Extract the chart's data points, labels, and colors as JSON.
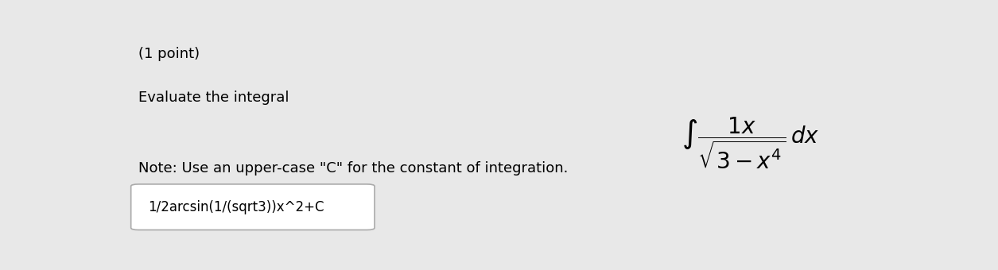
{
  "background_color": "#e8e8e8",
  "title_text": "(1 point)",
  "subtitle_text": "Evaluate the integral",
  "note_text": "Note: Use an upper-case \"C\" for the constant of integration.",
  "answer_text": "1/2arcsin(1/(sqrt3))x^2+C",
  "integral_latex": "$\\int \\dfrac{1x}{\\sqrt{3-x^4}}\\, dx$",
  "text_color": "#000000",
  "answer_box_color": "#ffffff",
  "answer_box_edge": "#aaaaaa",
  "title_fontsize": 13,
  "body_fontsize": 13,
  "note_fontsize": 13,
  "answer_fontsize": 12,
  "integral_fontsize": 20
}
